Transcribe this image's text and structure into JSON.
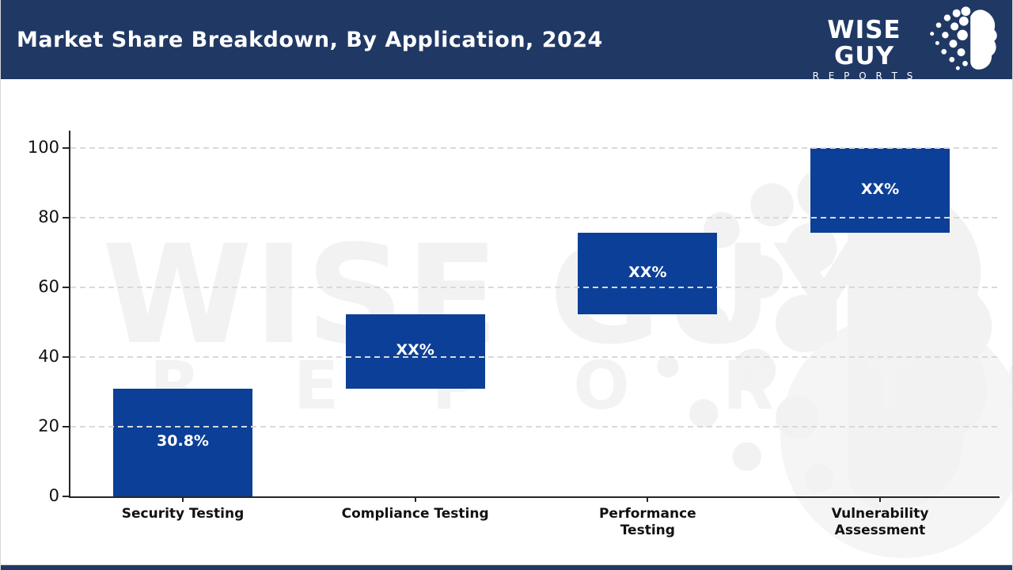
{
  "header": {
    "title": "Market Share Breakdown, By Application, 2024",
    "logo": {
      "line1": "WISE GUY",
      "line2": "R E P O R T S"
    }
  },
  "watermark": {
    "line1": "WISE GUY",
    "line2": "R E P O R T S"
  },
  "chart_data": {
    "type": "bar",
    "subtype": "waterfall",
    "title": "Market Share Breakdown, By Application, 2024",
    "xlabel": "",
    "ylabel": "",
    "ylim": [
      0,
      105
    ],
    "y_ticks": [
      0,
      20,
      40,
      60,
      80,
      100
    ],
    "grid": {
      "horizontal": true,
      "style": "dashed",
      "above_bars": true
    },
    "legend": "none",
    "bar_color": "#0c3f97",
    "bar_label_color": "#ffffff",
    "categories": [
      {
        "name": "Security Testing",
        "lines": [
          "Security Testing"
        ],
        "start": 0,
        "end": 30.8,
        "label": "30.8%"
      },
      {
        "name": "Compliance Testing",
        "lines": [
          "Compliance Testing"
        ],
        "start": 30.8,
        "end": 52.2,
        "label": "XX%"
      },
      {
        "name": "Performance Testing",
        "lines": [
          "Performance",
          "Testing"
        ],
        "start": 52.2,
        "end": 75.6,
        "label": "XX%"
      },
      {
        "name": "Vulnerability Assessment",
        "lines": [
          "Vulnerability",
          "Assessment"
        ],
        "start": 75.6,
        "end": 100,
        "label": "XX%"
      }
    ]
  },
  "colors": {
    "header_bg": "#203864",
    "footer_bg": "#203864",
    "bar": "#0c3f97",
    "axis": "#262626",
    "gridline": "#d9d9d9",
    "watermark": "#f2f2f2"
  }
}
